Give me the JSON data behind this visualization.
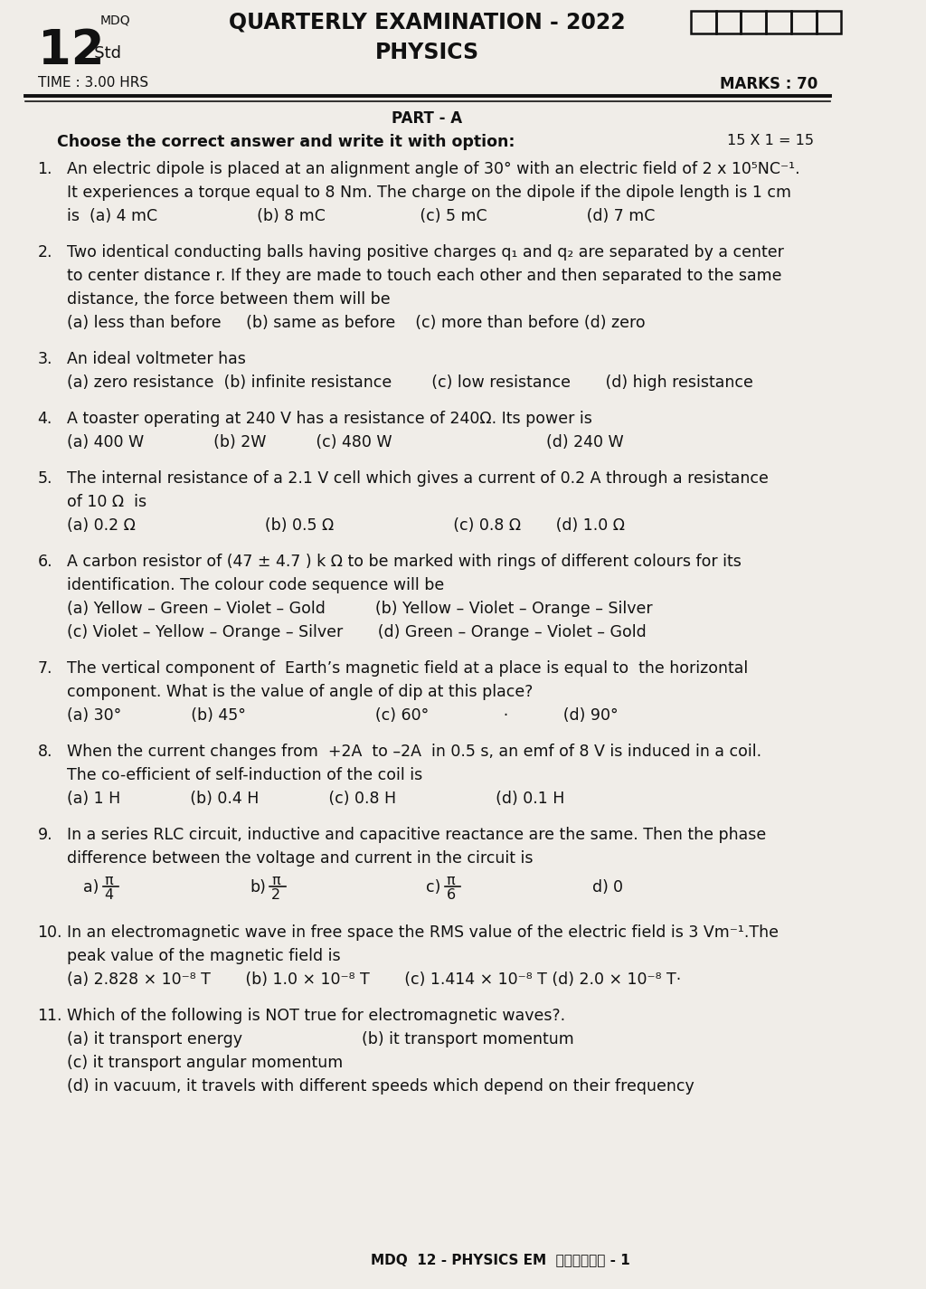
{
  "bg_color": "#f0ede8",
  "text_color": "#111111",
  "header": {
    "mdq": "MDQ",
    "title_line1": "QUARTERLY EXAMINATION - 2022",
    "title_line2": "PHYSICS",
    "time": "TIME : 3.00 HRS",
    "marks": "MARKS : 70"
  },
  "part_a": "PART - A",
  "instruction": "Choose the correct answer and write it with option:",
  "marks_info": "15 X 1 = 15",
  "footer": "MDQ  12 - PHYSICS EM  பக்கம் - 1"
}
